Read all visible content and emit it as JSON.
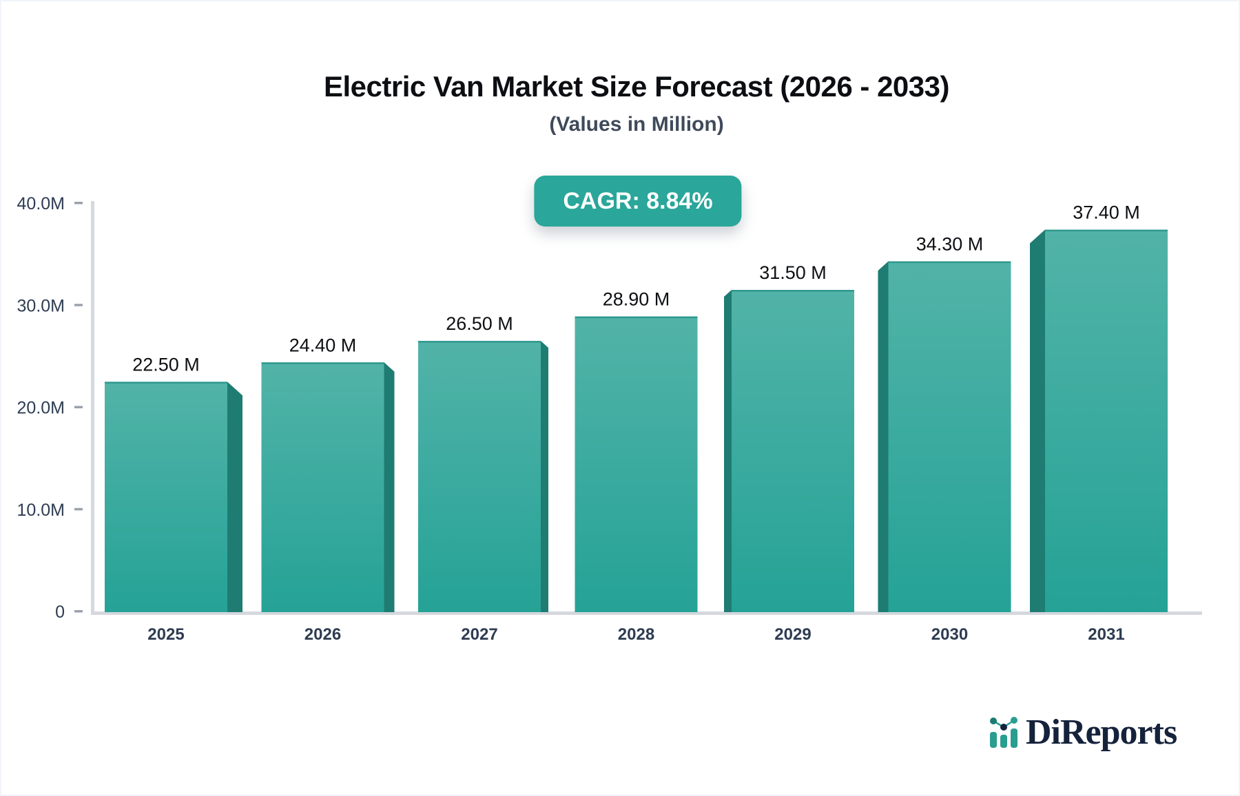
{
  "header": {
    "title": "Electric Van Market Size Forecast (2026 - 2033)",
    "subtitle": "(Values in Million)",
    "cagr_label": "CAGR: 8.84%"
  },
  "chart_data": {
    "type": "bar",
    "title": "Electric Van Market Size Forecast (2026 - 2033)",
    "subtitle": "(Values in Million)",
    "categories": [
      "2025",
      "2026",
      "2027",
      "2028",
      "2029",
      "2030",
      "2031"
    ],
    "values": [
      22.5,
      24.4,
      26.5,
      28.9,
      31.5,
      34.3,
      37.4
    ],
    "value_labels": [
      "22.50 M",
      "24.40 M",
      "26.50 M",
      "28.90 M",
      "31.50 M",
      "34.30 M",
      "37.40 M"
    ],
    "xlabel": "",
    "ylabel": "",
    "ylim": [
      0,
      40
    ],
    "yticks": [
      {
        "value": 40,
        "label": "40.0M"
      },
      {
        "value": 30,
        "label": "30.0M"
      },
      {
        "value": 20,
        "label": "20.0M"
      },
      {
        "value": 10,
        "label": "10.0M"
      },
      {
        "value": 0,
        "label": "0"
      }
    ],
    "grid": false,
    "legend": false,
    "annotation": "CAGR: 8.84%"
  },
  "branding": {
    "name": "DiReports"
  },
  "colors": {
    "bar_top": "#52b3a8",
    "bar_bottom": "#25a296",
    "bar_side": "#1e7c72",
    "bar_top_edge": "#2f988d",
    "axis_line": "#d5d8de",
    "tick": "#9ba2ac",
    "value_text": "#0d0f13",
    "axis_text": "#2e3c52",
    "badge_bg": "#2aa69a",
    "logo_navy": "#15223c",
    "logo_teal": "#2a9d91",
    "logo_dark_teal": "#1b7c72"
  }
}
